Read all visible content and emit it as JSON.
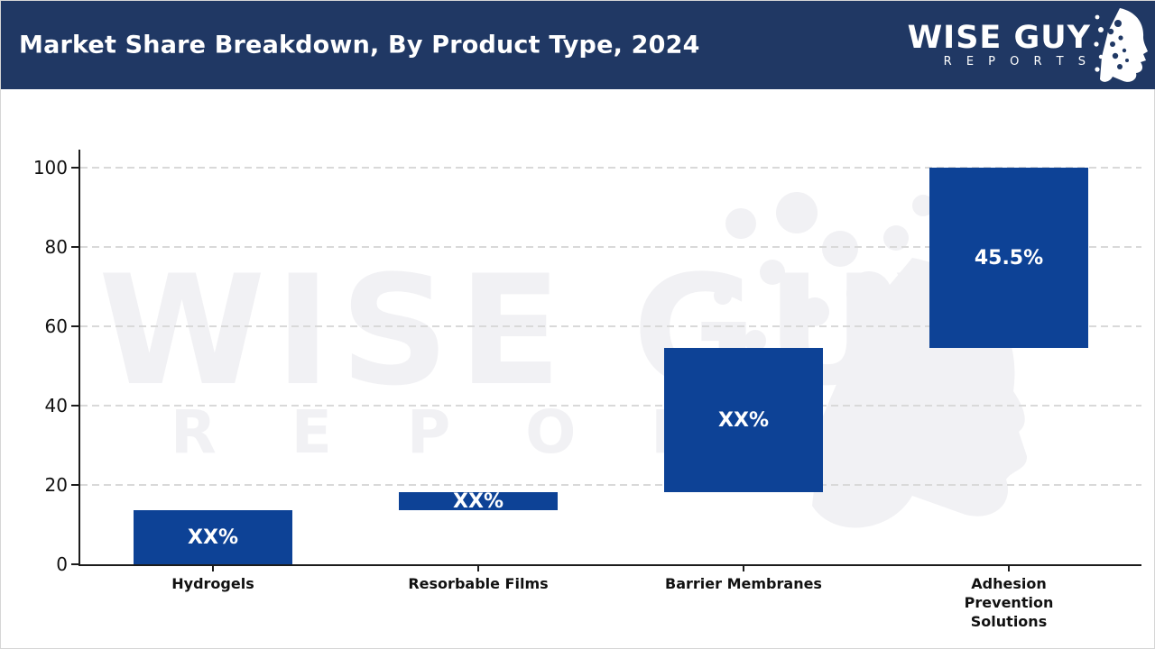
{
  "header": {
    "title": "Market Share Breakdown, By Product Type, 2024",
    "logo": {
      "line1": "WISE GUY",
      "line2": "R E P O R T S"
    }
  },
  "watermark": {
    "line1": "WISE GUY",
    "line2": "R E P O R T S"
  },
  "colors": {
    "header_bg": "#203864",
    "bar": "#0d4296",
    "grid": "#d9d9d9",
    "axis": "#1c1c1c",
    "value_label": "#ffffff",
    "watermark": "#f1f1f4"
  },
  "chart_data": {
    "type": "bar",
    "subtype": "waterfall-stacked",
    "title": "Market Share Breakdown, By Product Type, 2024",
    "categories": [
      "Hydrogels",
      "Resorbable Films",
      "Barrier Membranes",
      "Adhesion Prevention Solutions"
    ],
    "tick_label_lines": [
      [
        "Hydrogels"
      ],
      [
        "Resorbable Films"
      ],
      [
        "Barrier Membranes"
      ],
      [
        "Adhesion",
        "Prevention",
        "Solutions"
      ]
    ],
    "segments": [
      {
        "category": "Hydrogels",
        "start": 0,
        "end": 13.6
      },
      {
        "category": "Resorbable Films",
        "start": 13.6,
        "end": 18.2
      },
      {
        "category": "Barrier Membranes",
        "start": 18.2,
        "end": 54.5
      },
      {
        "category": "Adhesion Prevention Solutions",
        "start": 54.5,
        "end": 100
      }
    ],
    "values": [
      13.6,
      4.6,
      36.3,
      45.5
    ],
    "value_labels": [
      "XX%",
      "XX%",
      "XX%",
      "45.5%"
    ],
    "yticks": [
      0,
      20,
      40,
      60,
      80,
      100
    ],
    "ylim": [
      0,
      105
    ],
    "xlabel": "",
    "ylabel": "",
    "grid": "horizontal-dashed",
    "legend": "none",
    "bar_color": "#0d4296"
  }
}
